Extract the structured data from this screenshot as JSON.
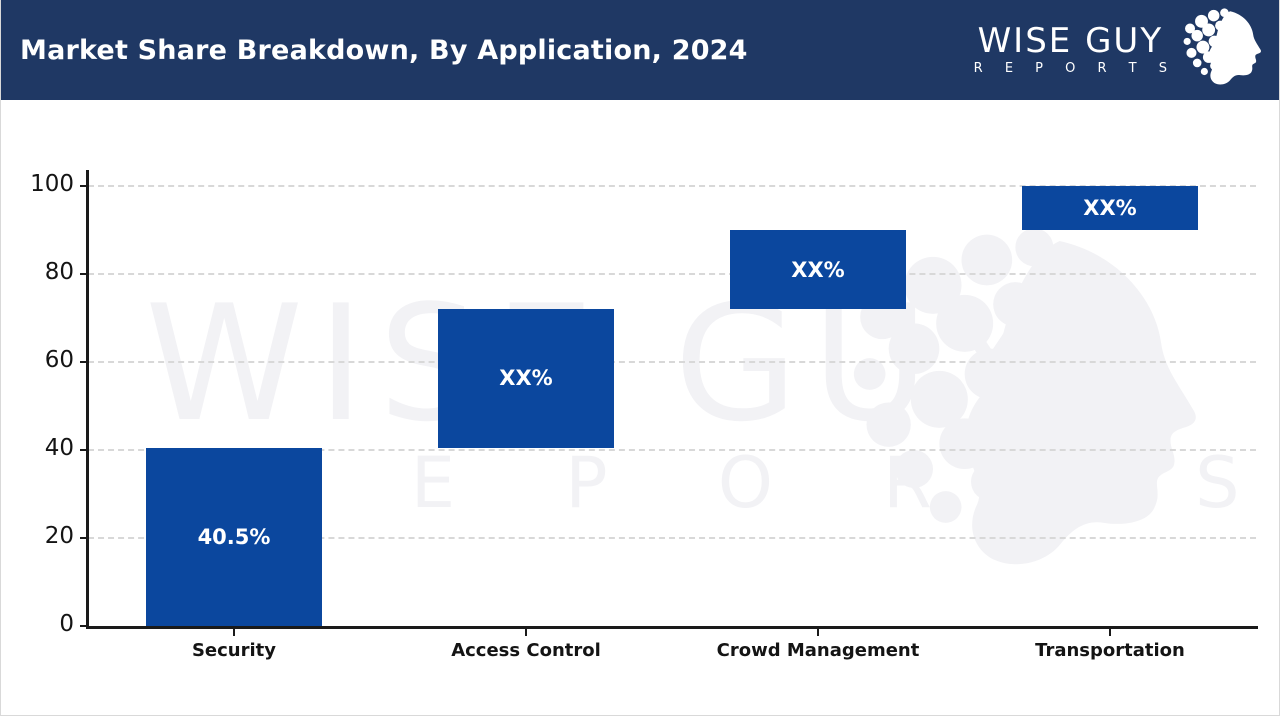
{
  "header": {
    "title": "Market Share Breakdown, By Application, 2024",
    "bg_color": "#1F3864",
    "logo": {
      "name_line": "WISE GUY",
      "sub_line": "R E P O R T S"
    }
  },
  "watermark": {
    "line1": "WISE GUY",
    "line2": "R E P O R T S"
  },
  "chart_data": {
    "type": "bar",
    "variant": "waterfall",
    "title": "Market Share Breakdown, By Application, 2024",
    "categories": [
      "Security",
      "Access Control",
      "Crowd Management",
      "Transportation"
    ],
    "segments": [
      {
        "category": "Security",
        "start": 0,
        "end": 40.5,
        "label": "40.5%"
      },
      {
        "category": "Access Control",
        "start": 40.5,
        "end": 72,
        "label": "XX%"
      },
      {
        "category": "Crowd Management",
        "start": 72,
        "end": 90,
        "label": "XX%"
      },
      {
        "category": "Transportation",
        "start": 90,
        "end": 100,
        "label": "XX%"
      }
    ],
    "yticks": [
      0,
      20,
      40,
      60,
      80,
      100
    ],
    "ylim": [
      0,
      104
    ],
    "xlabel": "",
    "ylabel": "",
    "legend": "none",
    "grid": "horizontal-dashed",
    "bar_color": "#0B479E",
    "bar_label_color": "#FFFFFF",
    "axis_color": "#1A1A1A",
    "grid_color": "#D8D8D8"
  }
}
